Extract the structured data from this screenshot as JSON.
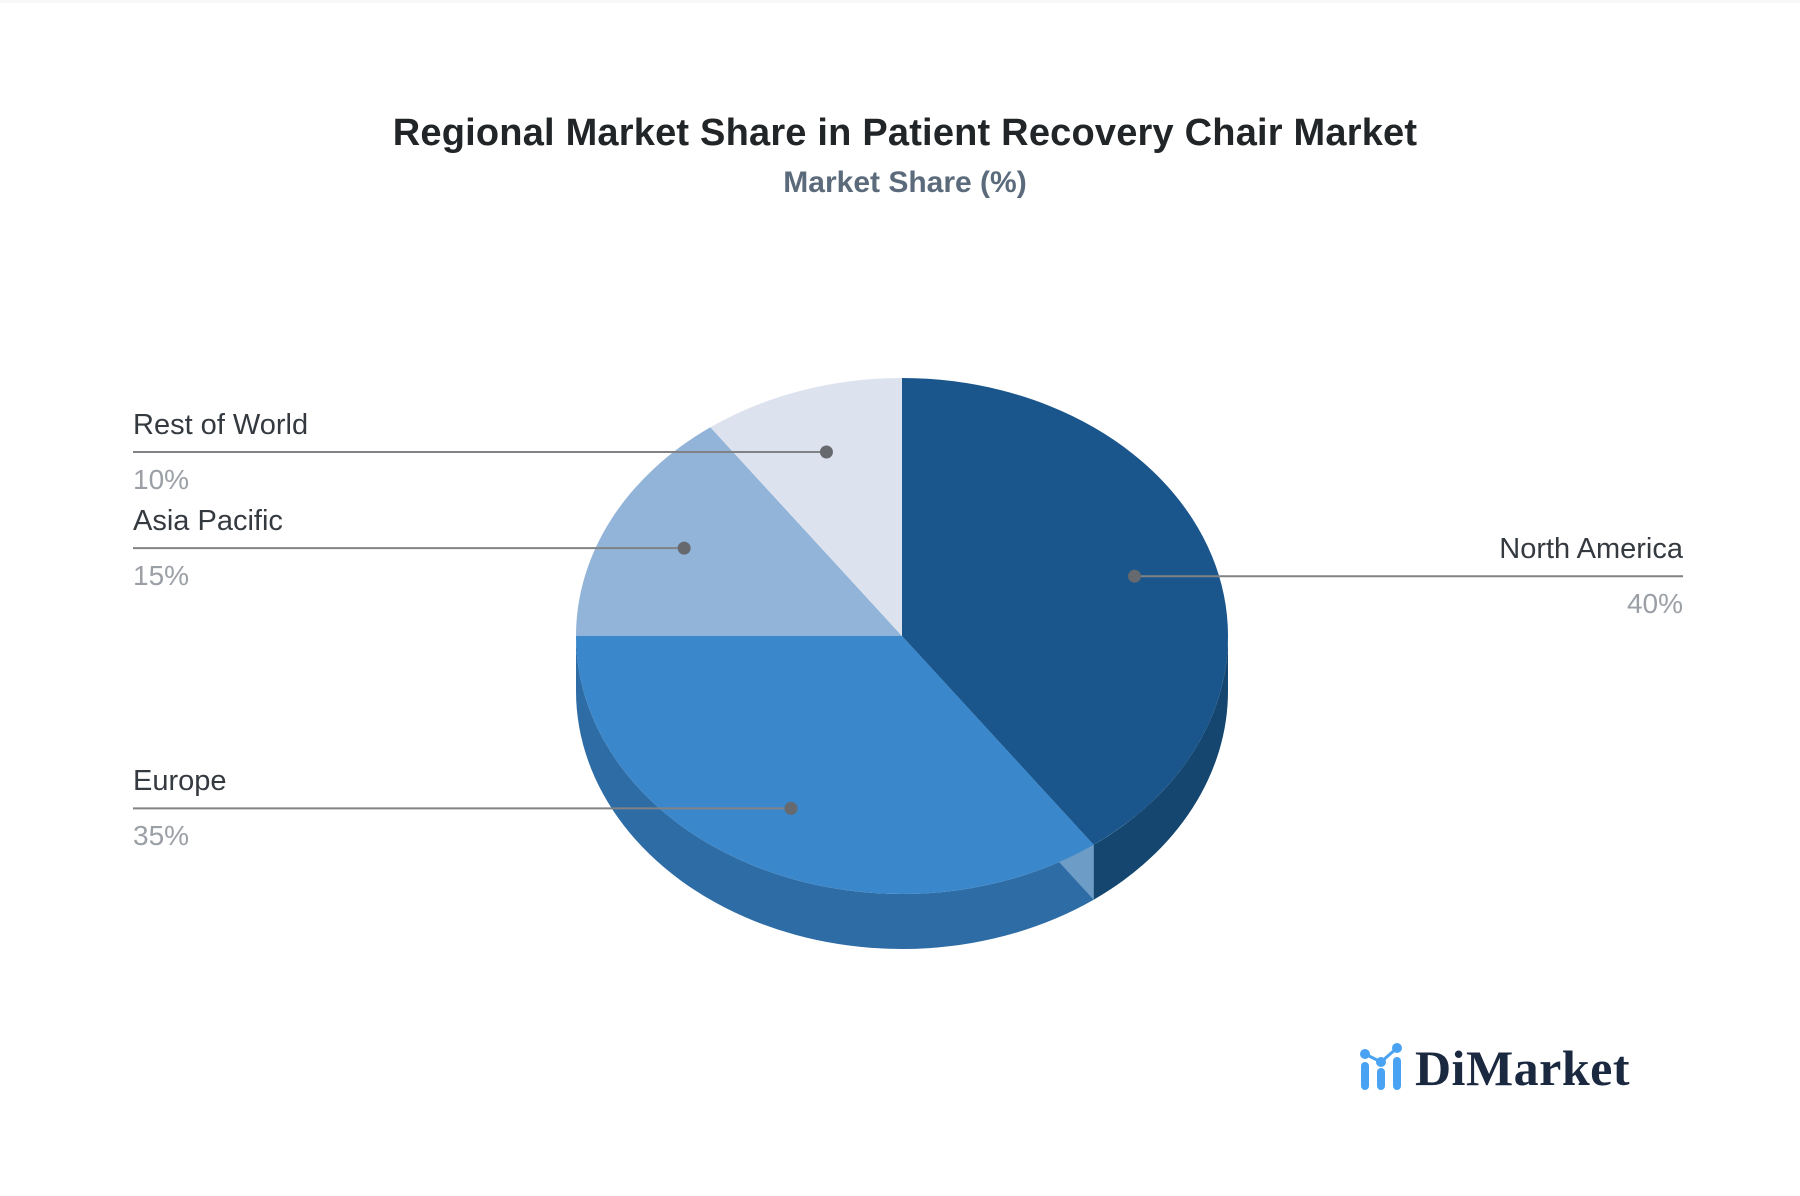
{
  "title": "Regional Market Share in Patient Recovery Chair Market",
  "subtitle": "Market Share (%)",
  "chart_data": {
    "type": "pie",
    "title": "Regional Market Share in Patient Recovery Chair Market",
    "subtitle": "Market Share (%)",
    "unit": "%",
    "style": "3d-pie",
    "start_angle_deg": -90,
    "direction": "clockwise",
    "legend": "none",
    "slices": [
      {
        "label": "North America",
        "value": 40,
        "pct_label": "40%",
        "color": "#1A568B",
        "side_color": "#15466F",
        "label_side": "right"
      },
      {
        "label": "Europe",
        "value": 35,
        "pct_label": "35%",
        "color": "#3A88CB",
        "side_color": "#2E6CA6",
        "label_side": "left"
      },
      {
        "label": "Asia Pacific",
        "value": 15,
        "pct_label": "15%",
        "color": "#92B4D8",
        "side_color": "#7FA6C9",
        "label_side": "left"
      },
      {
        "label": "Rest of World",
        "value": 10,
        "pct_label": "10%",
        "color": "#DDE3EE",
        "side_color": "#C7D2E2",
        "label_side": "left"
      }
    ],
    "divider_face_color": "#6D9CC6",
    "labels_style": {
      "name_color": "#343A40",
      "pct_color": "#9BA0A6",
      "line_color": "#808285",
      "dot_color": "#66696D"
    }
  },
  "logo": {
    "brand": "DiMarket",
    "icon": "bar-chart-trend-icon",
    "icon_color": "#4AA2F3",
    "text_color": "#1B2940"
  }
}
